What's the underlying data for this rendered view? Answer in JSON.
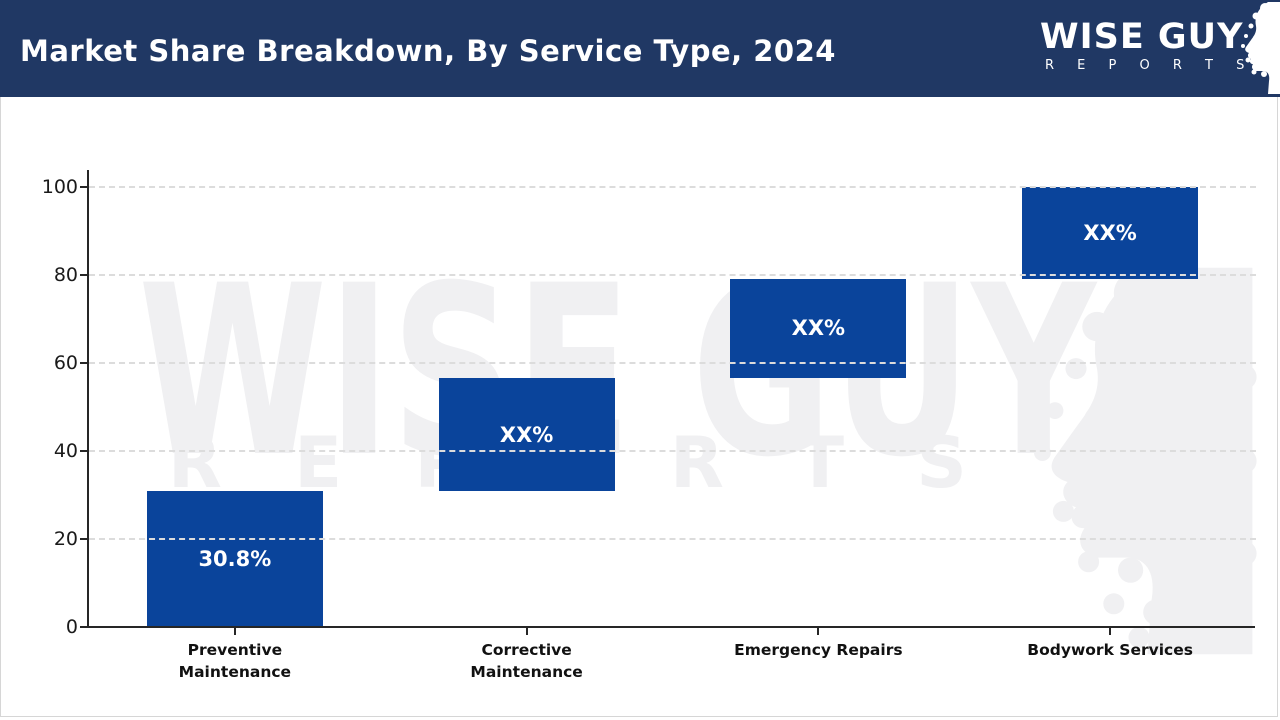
{
  "header": {
    "title": "Market Share Breakdown, By Service Type, 2024",
    "logo": {
      "line1": "WISE GUY",
      "line2": "R E P O R T S"
    }
  },
  "watermark": {
    "line1": "WISE GUY",
    "line2": "R E P O R T S"
  },
  "colors": {
    "header_bg": "#203864",
    "bar": "#0a449b",
    "grid": "#dcdcdc",
    "axis": "#262626",
    "bar_label_text": "#ffffff",
    "watermark": "#f0f0f2"
  },
  "chart_data": {
    "type": "bar",
    "subtype": "waterfall",
    "title": "Market Share Breakdown, By Service Type, 2024",
    "categories": [
      "Preventive Maintenance",
      "Corrective Maintenance",
      "Emergency Repairs",
      "Bodywork Services"
    ],
    "category_lines": [
      [
        "Preventive",
        "Maintenance"
      ],
      [
        "Corrective",
        "Maintenance"
      ],
      [
        "Emergency Repairs"
      ],
      [
        "Bodywork Services"
      ]
    ],
    "segments": [
      {
        "start": 0,
        "end": 30.8,
        "label": "30.8%"
      },
      {
        "start": 30.8,
        "end": 56.6,
        "label": "XX%"
      },
      {
        "start": 56.6,
        "end": 79.2,
        "label": "XX%"
      },
      {
        "start": 79.2,
        "end": 100,
        "label": "XX%"
      }
    ],
    "xlabel": "",
    "ylabel": "",
    "ylim": [
      0,
      100
    ],
    "y_ticks": [
      0,
      20,
      40,
      60,
      80,
      100
    ],
    "grid": "horizontal-dashed",
    "legend": "none"
  }
}
